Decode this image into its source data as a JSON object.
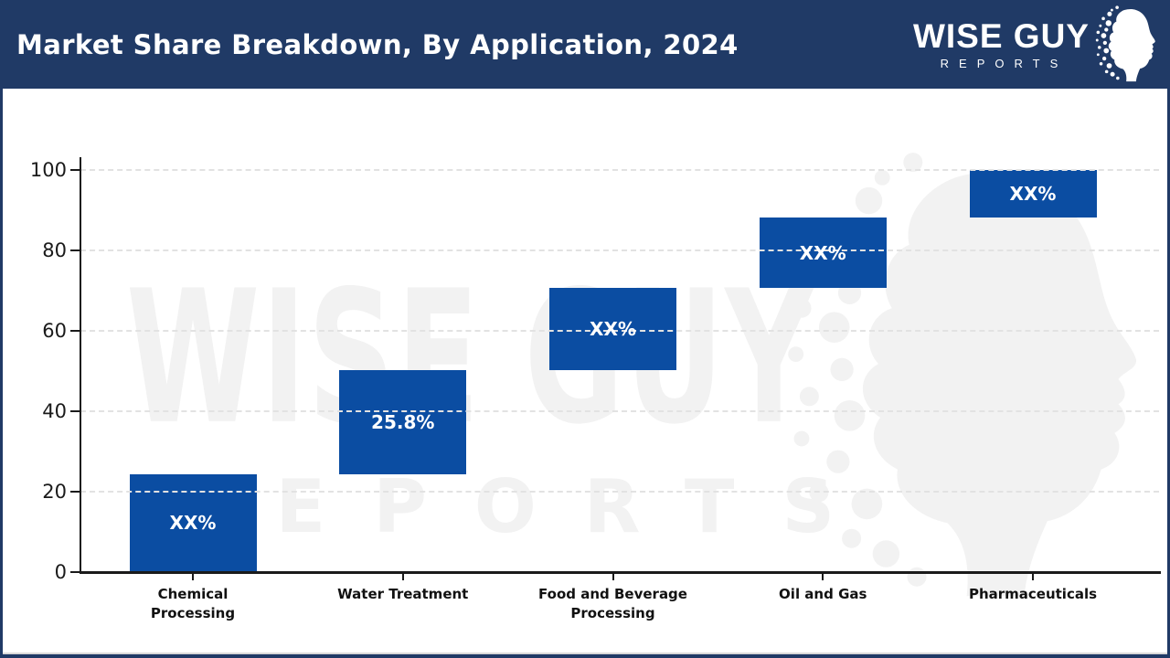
{
  "header": {
    "title": "Market Share Breakdown, By Application, 2024",
    "brand": {
      "line1": "WISE GUY",
      "line2": "REPORTS"
    }
  },
  "watermark": {
    "line1": "WISE GUY",
    "line2": "REPORTS"
  },
  "colors": {
    "header_bg": "#203a66",
    "bar": "#0b4da2",
    "bar_label": "#ffffff",
    "axis": "#1a1a1a",
    "gridline": "#e2e2e2",
    "watermark": "#f2f2f2",
    "title_text": "#ffffff"
  },
  "chart_data": {
    "type": "bar",
    "subtype": "waterfall",
    "title": "Market Share Breakdown, By Application, 2024",
    "xlabel": "",
    "ylabel": "",
    "ylim": [
      0,
      100
    ],
    "yticks": [
      0,
      20,
      40,
      60,
      80,
      100
    ],
    "grid": "horizontal-dashed",
    "legend": "none",
    "categories": [
      "Chemical Processing",
      "Water Treatment",
      "Food and Beverage Processing",
      "Oil and Gas",
      "Pharmaceuticals"
    ],
    "category_lines": [
      [
        "Chemical",
        "Processing"
      ],
      [
        "Water Treatment"
      ],
      [
        "Food and Beverage",
        "Processing"
      ],
      [
        "Oil and Gas"
      ],
      [
        "Pharmaceuticals"
      ]
    ],
    "segments": [
      {
        "category": "Chemical Processing",
        "start": 0,
        "end": 24.4,
        "label": "XX%"
      },
      {
        "category": "Water Treatment",
        "start": 24.4,
        "end": 50.2,
        "label": "25.8%",
        "value": 25.8
      },
      {
        "category": "Food and Beverage Processing",
        "start": 50.2,
        "end": 70.6,
        "label": "XX%"
      },
      {
        "category": "Oil and Gas",
        "start": 70.6,
        "end": 88.2,
        "label": "XX%"
      },
      {
        "category": "Pharmaceuticals",
        "start": 88.2,
        "end": 100,
        "label": "XX%"
      }
    ]
  }
}
